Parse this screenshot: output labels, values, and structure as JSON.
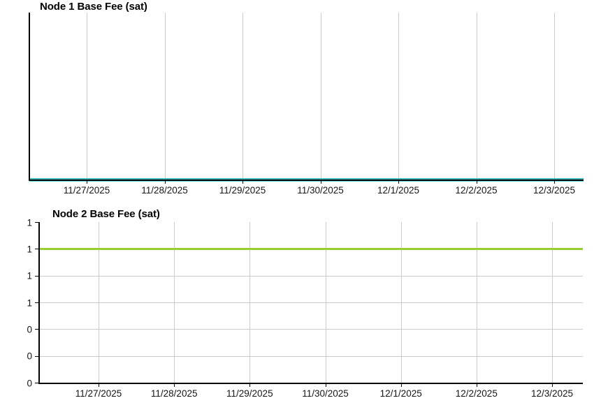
{
  "colors": {
    "background": "#ffffff",
    "axis": "#000000",
    "gridline": "#cccccc",
    "tick_label": "#161616",
    "node1_line": "#4bc0c0",
    "node2_line": "#9acd32"
  },
  "chart_data": [
    {
      "type": "line",
      "title": "Node 1 Base Fee (sat)",
      "x": [
        "11/27/2025",
        "11/28/2025",
        "11/29/2025",
        "11/30/2025",
        "12/1/2025",
        "12/2/2025",
        "12/3/2025"
      ],
      "series": [
        {
          "name": "Node 1 Base Fee (sat)",
          "values": [
            0,
            0,
            0,
            0,
            0,
            0,
            0
          ],
          "color": "#4bc0c0"
        }
      ],
      "xlabel": "",
      "ylabel": "",
      "y_tick_labels": [],
      "ylim": [
        0,
        1
      ],
      "grid": "vertical-only",
      "legend": "none",
      "line_style": "flat horizontal line at 0, overlapping the x-axis"
    },
    {
      "type": "line",
      "title": "Node 2 Base Fee (sat)",
      "x": [
        "11/27/2025",
        "11/28/2025",
        "11/29/2025",
        "11/30/2025",
        "12/1/2025",
        "12/2/2025",
        "12/3/2025"
      ],
      "series": [
        {
          "name": "Node 2 Base Fee (sat)",
          "values": [
            1,
            1,
            1,
            1,
            1,
            1,
            1
          ],
          "color": "#9acd32"
        }
      ],
      "xlabel": "",
      "ylabel": "",
      "y_tick_labels": [
        "1",
        "1",
        "1",
        "1",
        "0",
        "0",
        "0"
      ],
      "y_tick_values": [
        1.2,
        1.0,
        0.8,
        0.6,
        0.4,
        0.2,
        0
      ],
      "ylim": [
        0,
        1.2
      ],
      "grid": "both",
      "legend": "none",
      "line_style": "flat horizontal line at 1"
    }
  ]
}
